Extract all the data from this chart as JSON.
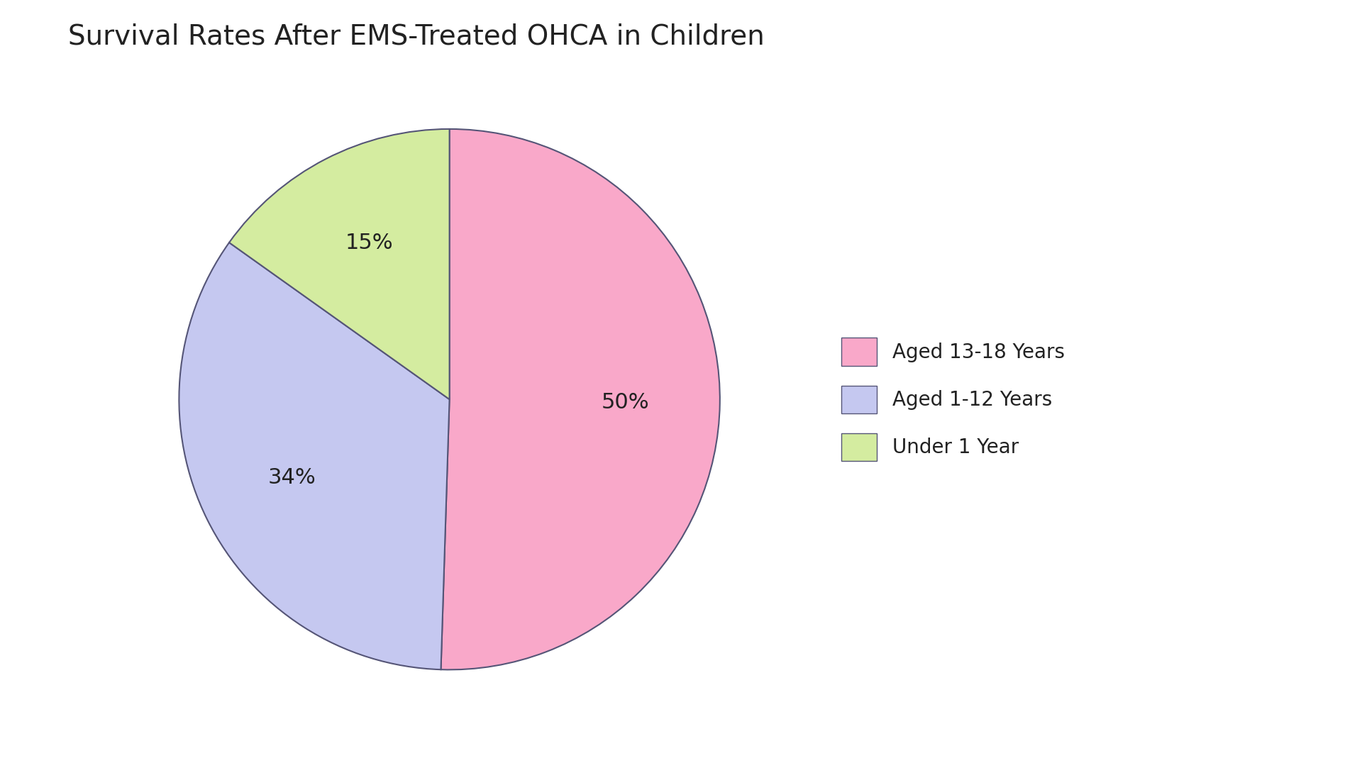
{
  "title": "Survival Rates After EMS-Treated OHCA in Children",
  "title_fontsize": 28,
  "slices": [
    50,
    34,
    15
  ],
  "autopct_labels": [
    "50%",
    "34%",
    "15%"
  ],
  "colors": [
    "#F9A8C9",
    "#C5C8F0",
    "#D4ECA0"
  ],
  "edge_color": "#555577",
  "edge_width": 1.5,
  "legend_labels": [
    "Aged 13-18 Years",
    "Aged 1-12 Years",
    "Under 1 Year"
  ],
  "legend_fontsize": 20,
  "startangle": 90,
  "pct_fontsize": 22,
  "background_color": "#ffffff",
  "text_color": "#222222"
}
